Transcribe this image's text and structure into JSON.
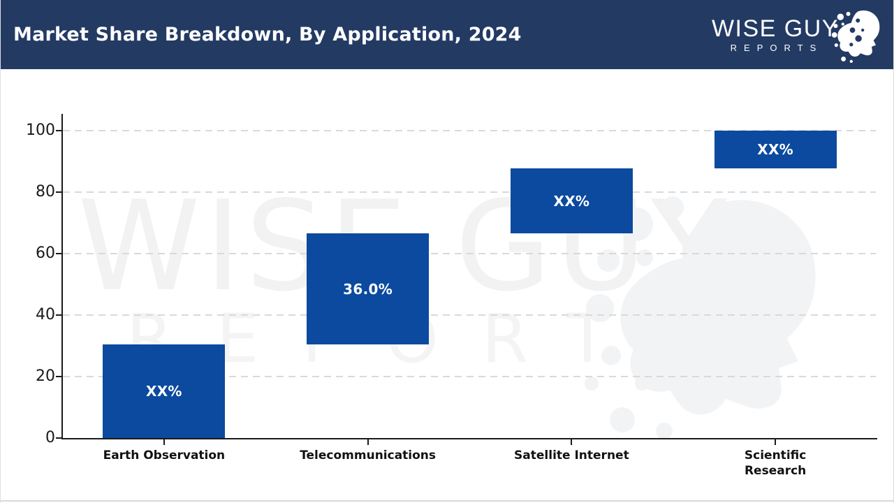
{
  "header": {
    "logo": {
      "line1": "WISE GUY",
      "line2": "REPORTS"
    }
  },
  "watermark": {
    "line1": "WISE GUY",
    "line2": "REPORTS"
  },
  "chart_data": {
    "type": "bar",
    "subtype": "floating-segment-bars (stacked percentage waterfall)",
    "title": "Market Share Breakdown, By Application, 2024",
    "categories": [
      "Earth Observation",
      "Telecommunications",
      "Satellite Internet",
      "Scientific Research"
    ],
    "category_label_lines": [
      [
        "Earth Observation"
      ],
      [
        "Telecommunications"
      ],
      [
        "Satellite Internet"
      ],
      [
        "Scientific",
        "Research"
      ]
    ],
    "bars": [
      {
        "category": "Earth Observation",
        "start": 0,
        "end": 30.5,
        "value_label": "XX%"
      },
      {
        "category": "Telecommunications",
        "start": 30.5,
        "end": 66.5,
        "value_label": "36.0%"
      },
      {
        "category": "Satellite Internet",
        "start": 66.5,
        "end": 87.8,
        "value_label": "XX%"
      },
      {
        "category": "Scientific Research",
        "start": 87.8,
        "end": 100,
        "value_label": "XX%"
      }
    ],
    "yticks": [
      0,
      20,
      40,
      60,
      80,
      100
    ],
    "ylim": [
      0,
      105.5
    ],
    "xlabel": "",
    "ylabel": "",
    "grid": "horizontal-dashed",
    "legend": "none",
    "colors": {
      "bar": "#0b4a9e",
      "bar_label": "#ffffff",
      "grid": "#d9d9d9",
      "axis": "#1a1a1a",
      "header_bg": "#233a63",
      "header_text": "#ffffff",
      "watermark": "#f2f2f3"
    }
  }
}
